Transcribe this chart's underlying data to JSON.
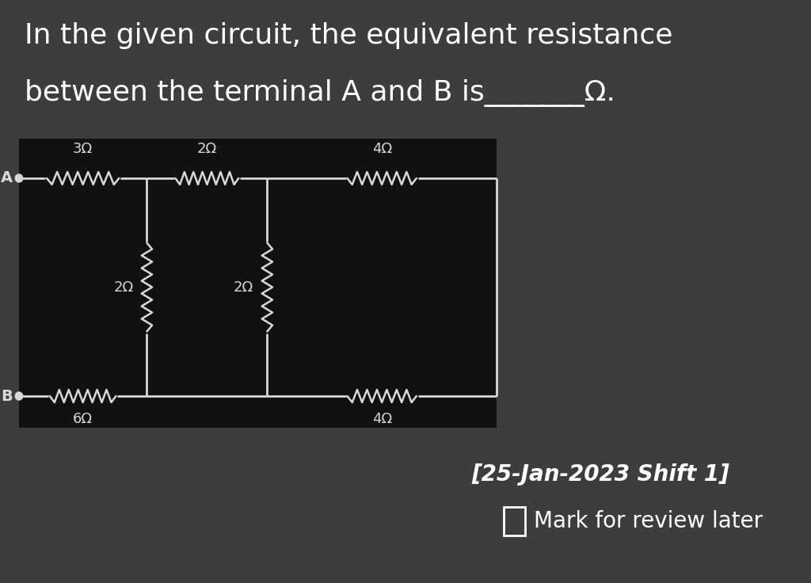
{
  "bg_color": "#3d3d3d",
  "circuit_bg": "#111111",
  "wire_color": "#d8d8d8",
  "text_color": "#ffffff",
  "title_line1": "In the given circuit, the equivalent resistance",
  "title_line2": "between the terminal A and B is_______Ω.",
  "date_label": "[25-Jan-2023 Shift 1]",
  "mark_label": "Mark for review later",
  "res_top_left": "3Ω",
  "res_top_mid": "2Ω",
  "res_top_right": "4Ω",
  "res_vert_left": "2Ω",
  "res_vert_mid": "2Ω",
  "res_bot_right": "4Ω",
  "res_bot_left": "6Ω",
  "figsize": [
    10.24,
    7.36
  ],
  "dpi": 100
}
